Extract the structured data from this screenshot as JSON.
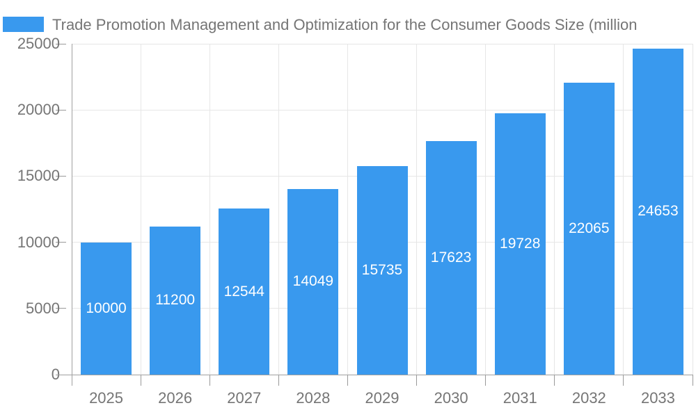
{
  "chart_data": {
    "type": "bar",
    "title": "Trade Promotion Management and Optimization for the Consumer Goods Size (million",
    "categories": [
      "2025",
      "2026",
      "2027",
      "2028",
      "2029",
      "2030",
      "2031",
      "2032",
      "2033"
    ],
    "values": [
      10000,
      11200,
      12544,
      14049,
      15735,
      17623,
      19728,
      22065,
      24653
    ],
    "xlabel": "",
    "ylabel": "",
    "ylim": [
      0,
      25000
    ],
    "yticks": [
      0,
      5000,
      10000,
      15000,
      20000,
      25000
    ],
    "grid": true,
    "legend_position": "top-left",
    "value_label_position": "inside-center"
  },
  "colors": {
    "bar": "#3999ee",
    "bar_label": "#ffffff",
    "grid_line": "#e6e6e6",
    "axis_line": "#a0a0a0",
    "tick_mark": "#999999",
    "axis_text": "#757575",
    "title_text": "#757575",
    "background": "#ffffff"
  }
}
